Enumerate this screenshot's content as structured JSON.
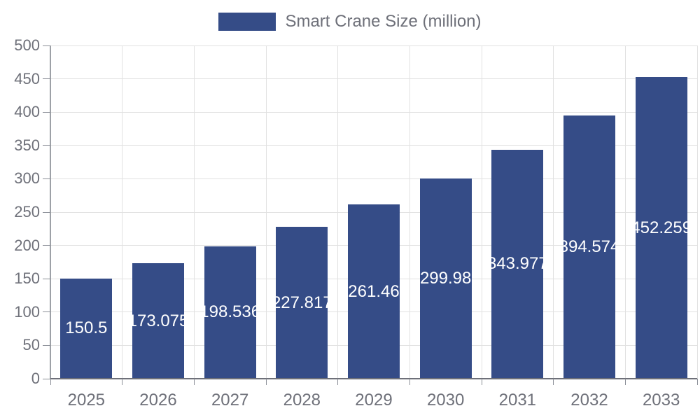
{
  "legend": {
    "label": "Smart Crane Size (million)"
  },
  "chart_data": {
    "type": "bar",
    "title": "Smart Crane Size (million)",
    "series_name": "Smart Crane Size (million)",
    "categories": [
      "2025",
      "2026",
      "2027",
      "2028",
      "2029",
      "2030",
      "2031",
      "2032",
      "2033"
    ],
    "values": [
      150.5,
      173.075,
      198.536,
      227.817,
      261.46,
      299.98,
      343.977,
      394.574,
      452.259
    ],
    "labels": [
      "150.5",
      "173.075",
      "198.536",
      "227.817",
      "261.46",
      "299.98",
      "343.977",
      "394.574",
      "452.259"
    ],
    "ylim": [
      0,
      500
    ],
    "ytick_step": 50,
    "ytick_labels": [
      "0",
      "50",
      "100",
      "150",
      "200",
      "250",
      "300",
      "350",
      "400",
      "450",
      "500"
    ],
    "grid": true,
    "legend_position": "top-center",
    "colors": {
      "bar": "#354C87",
      "bar_label": "#FFFFFF",
      "axis_line": "#6E7079",
      "grid_line": "#E1E1E1",
      "tick_text": "#6E7079"
    }
  }
}
